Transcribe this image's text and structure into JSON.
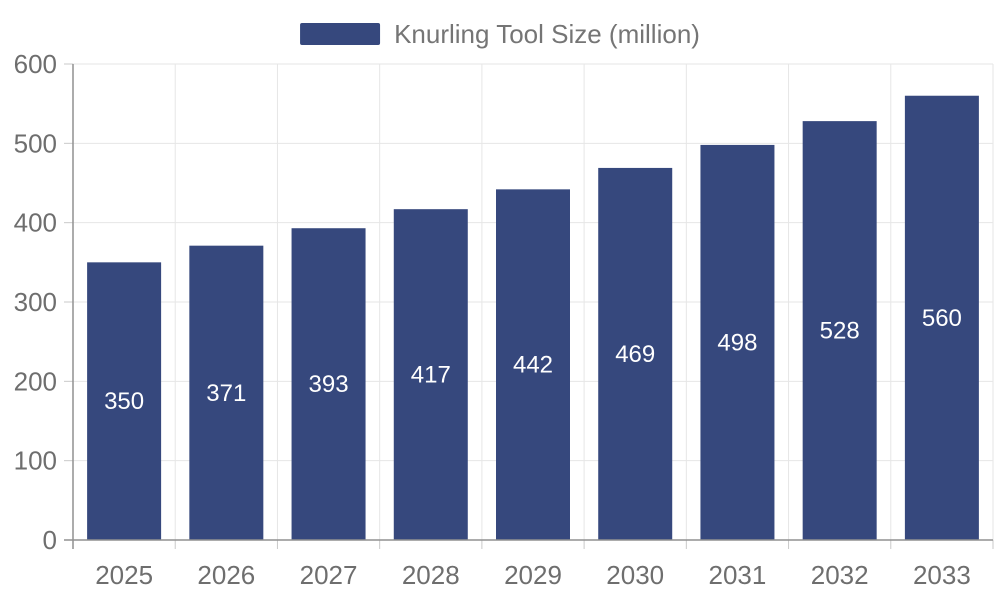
{
  "legend": {
    "label": "Knurling Tool Size (million)"
  },
  "chart_data": {
    "type": "bar",
    "title": "",
    "xlabel": "",
    "ylabel": "",
    "categories": [
      "2025",
      "2026",
      "2027",
      "2028",
      "2029",
      "2030",
      "2031",
      "2032",
      "2033"
    ],
    "series": [
      {
        "name": "Knurling Tool Size (million)",
        "values": [
          350,
          371,
          393,
          417,
          442,
          469,
          498,
          528,
          560
        ]
      }
    ],
    "value_labels_shown": true,
    "ylim": [
      0,
      600
    ],
    "yticks": [
      0,
      100,
      200,
      300,
      400,
      500,
      600
    ],
    "grid": true,
    "legend_position": "top",
    "colors": {
      "bar": "#36487d",
      "value_label": "#ffffff",
      "axis_text": "#6e6e6e",
      "legend_text": "#757575",
      "grid_line": "#e6e6e6",
      "axis_line": "#919191",
      "tick": "#c9c9c9",
      "background": "#ffffff"
    }
  }
}
